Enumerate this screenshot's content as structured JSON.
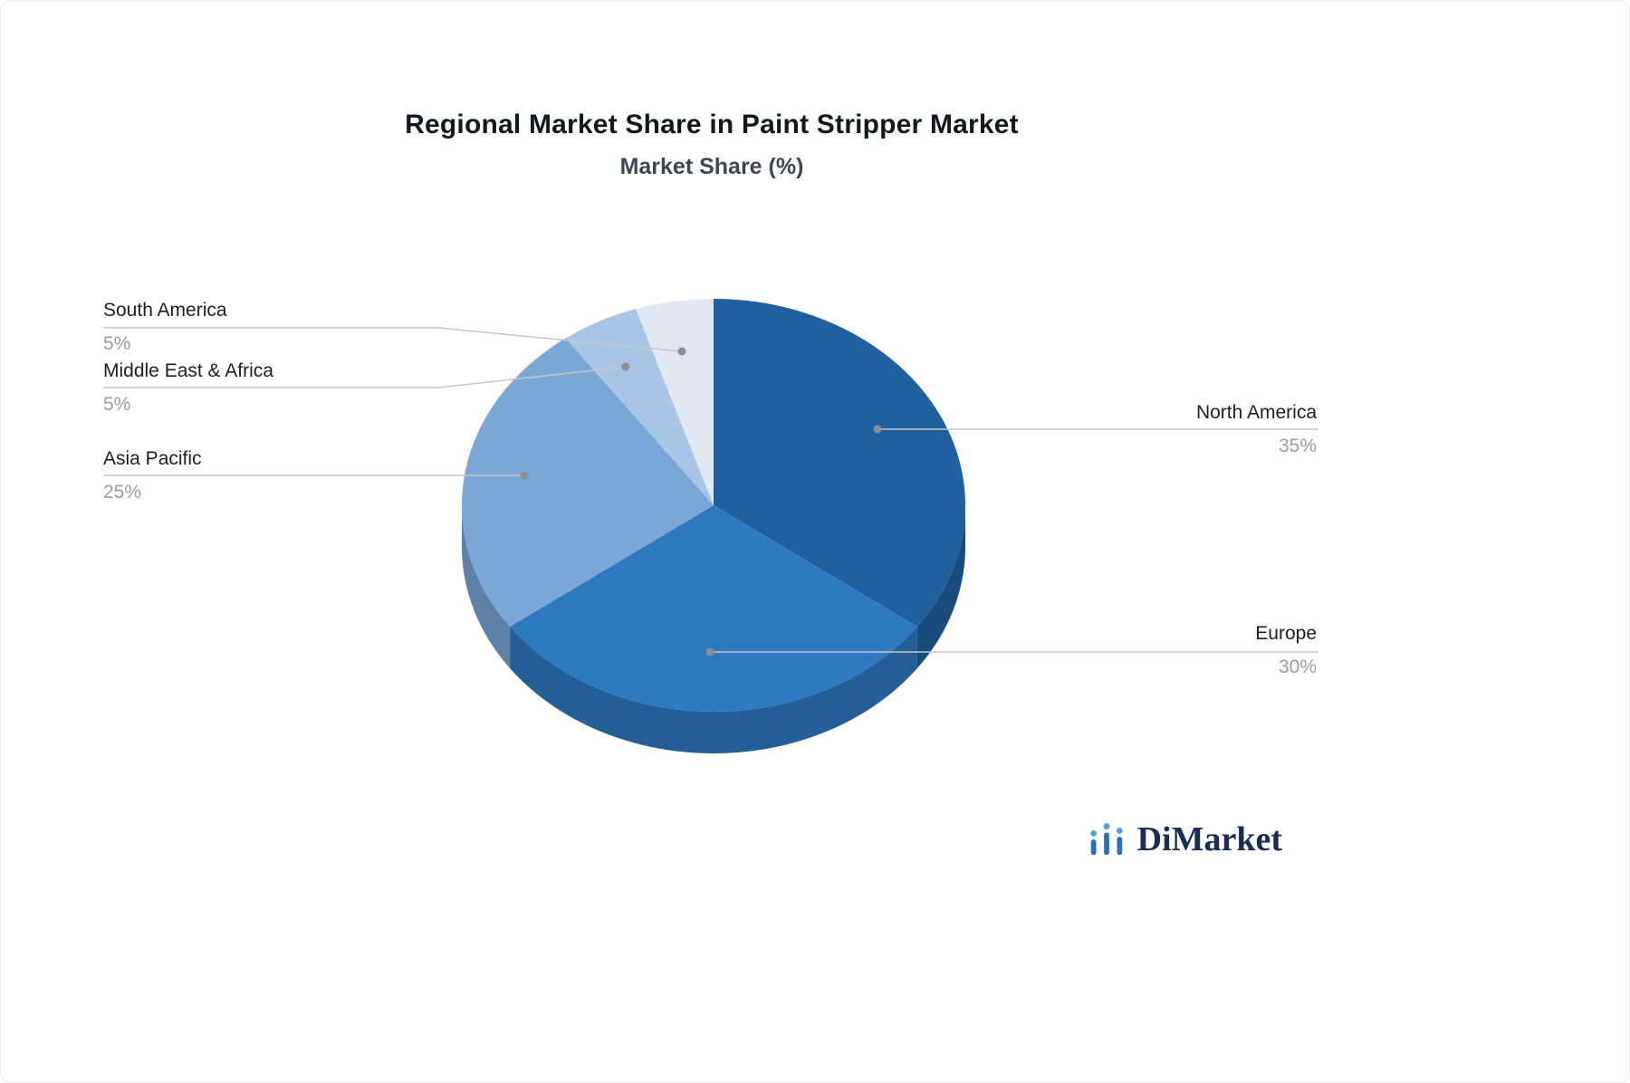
{
  "page": {
    "background": "#ffffff"
  },
  "chart_data": {
    "type": "pie",
    "style": "pie-3d",
    "title": "Regional Market Share in Paint Stripper Market",
    "subtitle": "Market Share (%)",
    "unit": "%",
    "legend_position": "none",
    "label_style": "callout-lines",
    "start_angle": "top",
    "direction": "clockwise",
    "points": [
      {
        "label": "North America",
        "value": 35,
        "display": "35%",
        "color": "#20609f",
        "side": "right"
      },
      {
        "label": "Europe",
        "value": 30,
        "display": "30%",
        "color": "#2e79c0",
        "side": "right"
      },
      {
        "label": "Asia Pacific",
        "value": 25,
        "display": "25%",
        "color": "#7aa6d8",
        "side": "left"
      },
      {
        "label": "Middle East & Africa",
        "value": 5,
        "display": "5%",
        "color": "#a9c5e6",
        "side": "left"
      },
      {
        "label": "South America",
        "value": 5,
        "display": "5%",
        "color": "#e1e8f1",
        "side": "left"
      }
    ]
  },
  "brand": {
    "name": "DiMarket",
    "icon": "bar-chart-icon",
    "text_color": "#1a2e52",
    "accent": "#2f7ac6"
  }
}
